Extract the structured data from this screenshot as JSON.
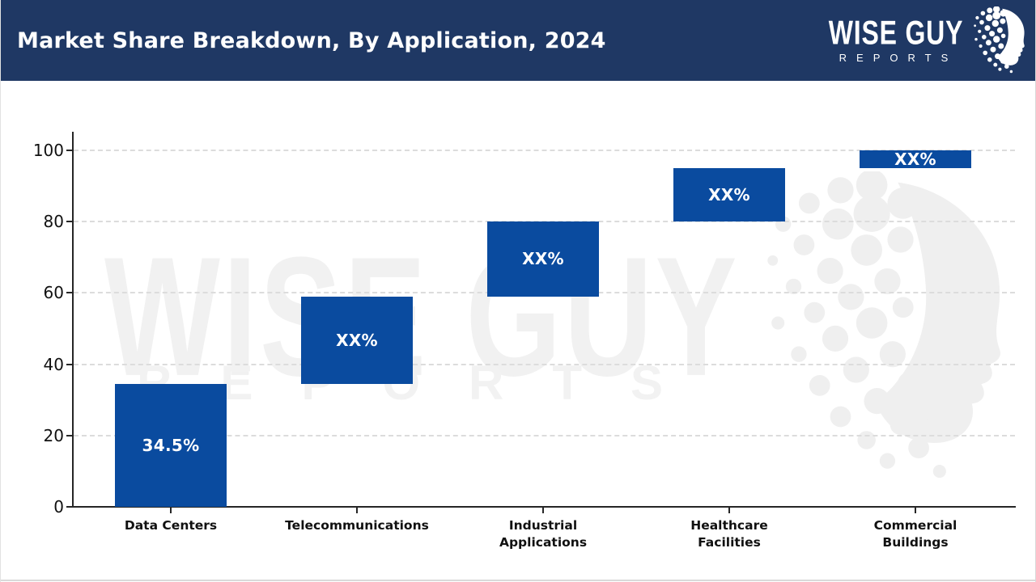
{
  "header": {
    "title": "Market Share Breakdown, By Application, 2024",
    "bg_color": "#1f3864",
    "logo": {
      "primary": "WISE GUY",
      "secondary": "REPORTS"
    }
  },
  "watermark": {
    "primary": "WISE GUY",
    "secondary": "REPORTS"
  },
  "chart_data": {
    "type": "bar",
    "variant": "waterfall-stacked-breakdown",
    "title": "Market Share Breakdown, By Application, 2024",
    "categories": [
      "Data Centers",
      "Telecommunications",
      "Industrial\nApplications",
      "Healthcare\nFacilities",
      "Commercial\nBuildings"
    ],
    "segments": [
      {
        "category": "Data Centers",
        "start": 0,
        "end": 34.5,
        "label": "34.5%"
      },
      {
        "category": "Telecommunications",
        "start": 34.5,
        "end": 59,
        "label": "XX%"
      },
      {
        "category": "Industrial Applications",
        "start": 59,
        "end": 80,
        "label": "XX%"
      },
      {
        "category": "Healthcare Facilities",
        "start": 80,
        "end": 95,
        "label": "XX%"
      },
      {
        "category": "Commercial Buildings",
        "start": 95,
        "end": 100,
        "label": "XX%"
      }
    ],
    "y_ticks": [
      0,
      20,
      40,
      60,
      80,
      100
    ],
    "ylim": [
      0,
      105
    ],
    "xlabel": "",
    "ylabel": "",
    "grid": "horizontal-dashed",
    "legend": "none",
    "bar_color": "#0a4b9f",
    "bar_label_color": "#ffffff",
    "axis_color": "#262626",
    "grid_color": "#dcdcdc"
  }
}
